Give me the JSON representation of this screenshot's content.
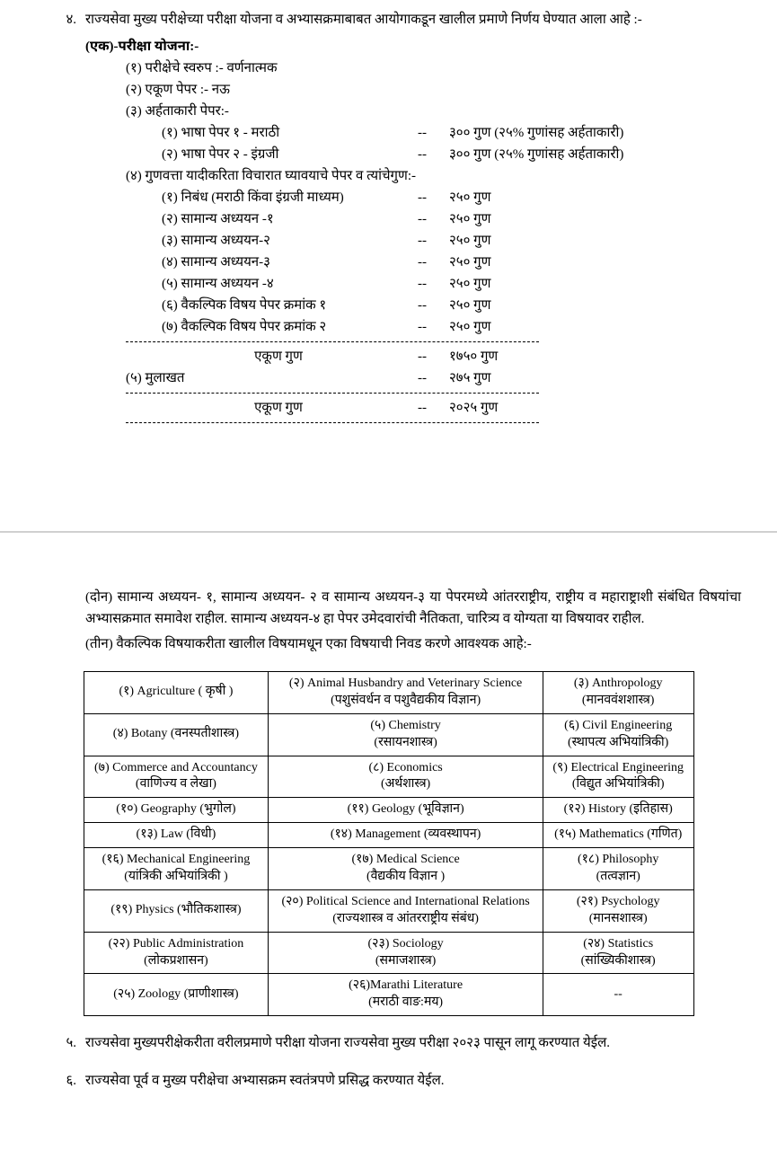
{
  "heading": {
    "num": "४.",
    "text": "राज्यसेवा मुख्य परीक्षेच्या परीक्षा योजना व अभ्यासक्रमाबाबत आयोगाकडून खालील प्रमाणे निर्णय घेण्यात आला आहे :-"
  },
  "section_ek": "(एक)-परीक्षा योजना:-",
  "lines": {
    "l1": "(१) परीक्षेचे स्वरुप :- वर्णनात्मक",
    "l2": "(२) एकूण पेपर :- नऊ",
    "l3": "(३) अर्हताकारी पेपर:-",
    "l3a_label": "(१)  भाषा पेपर १ - मराठी",
    "l3a_val": "३०० गुण (२५% गुणांसह अर्हताकारी)",
    "l3b_label": "(२) भाषा पेपर २ - इंग्रजी",
    "l3b_val": "३०० गुण (२५% गुणांसह अर्हताकारी)",
    "l4": "(४) गुणवत्ता यादीकरिता विचारात घ्यावयाचे पेपर व त्यांचेगुण:-",
    "q1_label": "(१)  निबंध (मराठी किंवा इंग्रजी माध्यम)",
    "q1_val": "२५० गुण",
    "q2_label": "(२) सामान्य अध्ययन -१",
    "q2_val": "२५० गुण",
    "q3_label": "(३) सामान्य अध्ययन-२",
    "q3_val": "२५० गुण",
    "q4_label": "(४) सामान्य अध्ययन-३",
    "q4_val": "२५० गुण",
    "q5_label": "(५) सामान्य अध्ययन -४",
    "q5_val": "२५० गुण",
    "q6_label": "(६) वैकल्पिक विषय पेपर क्रमांक १",
    "q6_val": "२५० गुण",
    "q7_label": "(७) वैकल्पिक विषय पेपर क्रमांक २",
    "q7_val": "२५० गुण",
    "subtotal_label": "एकूण गुण",
    "subtotal_val": "१७५० गुण",
    "interview_label": "(५)  मुलाखत",
    "interview_val": "२७५ गुण",
    "grand_label": "एकूण गुण",
    "grand_val": "२०२५ गुण"
  },
  "dash": "--",
  "para_don": "(दोन)  सामान्य अध्ययन- १, सामान्य अध्ययन- २ व सामान्य अध्ययन-३ या पेपरमध्ये आंतरराष्ट्रीय, राष्ट्रीय व महाराष्ट्राशी संबंधित विषयांचा अभ्यासक्रमात समावेश राहील. सामान्य अध्ययन-४ हा पेपर उमेदवारांची नैतिकता, चारित्र्य व योग्यता या विषयावर राहील.",
  "para_teen": "(तीन) वैकल्पिक विषयाकरीता खालील विषयामधून एका विषयाची निवड करणे आवश्यक आहे:-",
  "subjects": [
    [
      "(१) Agriculture ( कृषी )",
      "(२) Animal Husbandry and Veterinary Science\n(पशुसंवर्धन व पशुवैद्यकीय विज्ञान)",
      "(३) Anthropology\n(मानववंशशास्त्र)"
    ],
    [
      "(४) Botany (वनस्पतीशास्त्र)",
      "(५) Chemistry\n(रसायनशास्त्र)",
      "(६) Civil Engineering\n(स्थापत्य अभियांत्रिकी)"
    ],
    [
      "(७) Commerce and Accountancy\n(वाणिज्य व लेखा)",
      "(८) Economics\n(अर्थशास्त्र)",
      "(९) Electrical Engineering\n(विद्युत अभियांत्रिकी)"
    ],
    [
      "(१०) Geography (भुगोल)",
      "(११) Geology (भूविज्ञान)",
      "(१२) History (इतिहास)"
    ],
    [
      "(१३) Law (विधी)",
      "(१४) Management (व्यवस्थापन)",
      "(१५) Mathematics (गणित)"
    ],
    [
      "(१६) Mechanical Engineering\n(यांत्रिकी अभियांत्रिकी )",
      "(१७) Medical Science\n(वैद्यकीय विज्ञान )",
      "(१८) Philosophy\n(तत्वज्ञान)"
    ],
    [
      "(१९) Physics (भौतिकशास्त्र)",
      "(२०) Political Science and International Relations\n(राज्यशास्त्र व आंतरराष्ट्रीय संबंध)",
      "(२१) Psychology\n(मानसशास्त्र)"
    ],
    [
      "(२२) Public Administration\n(लोकप्रशासन)",
      "(२३) Sociology\n(समाजशास्त्र)",
      "(२४) Statistics\n(सांख्यिकीशास्त्र)"
    ],
    [
      "(२५) Zoology (प्राणीशास्त्र)",
      "(२६)Marathi Literature\n(मराठी वाङ:मय)",
      "--"
    ]
  ],
  "footer5": {
    "num": "५.",
    "text": "राज्यसेवा मुख्यपरीक्षेकरीता वरीलप्रमाणे परीक्षा योजना राज्यसेवा मुख्य परीक्षा २०२३ पासून लागू करण्यात येईल."
  },
  "footer6": {
    "num": "६.",
    "text": "राज्यसेवा पूर्व व मुख्य परीक्षेचा अभ्यासक्रम स्वतंत्रपणे प्रसिद्ध करण्यात येईल."
  }
}
